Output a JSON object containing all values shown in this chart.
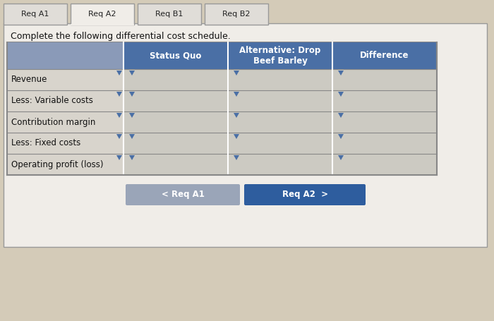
{
  "tabs": [
    "Req A1",
    "Req A2",
    "Req B1",
    "Req B2"
  ],
  "instruction": "Complete the following differential cost schedule.",
  "col_headers": [
    "",
    "Status Quo",
    "Alternative: Drop\nBeef Barley",
    "Difference"
  ],
  "row_labels": [
    "Revenue",
    "Less: Variable costs",
    "Contribution margin",
    "Less: Fixed costs",
    "Operating profit (loss)"
  ],
  "header_bg": "#4A6FA5",
  "header_text": "#FFFFFF",
  "page_bg": "#D4CBB8",
  "content_bg": "#F0EDE8",
  "tab_active_bg": "#F0EDE8",
  "tab_inactive_bg": "#E0DDD8",
  "tab_border": "#999999",
  "label_cell_bg": "#C8C4B8",
  "data_cell_bg": "#D0CCC0",
  "row_label_bg": "#E8E5E0",
  "row_data_bg": "#D4D0C8",
  "separator_color": "#FFFFFF",
  "outer_border": "#888888",
  "nav_left_bg": "#9AA5B8",
  "nav_right_bg": "#2E5D9E",
  "nav_text": "#FFFFFF",
  "nav_left_label": "< Req A1",
  "nav_right_label": "Req A2  >",
  "figsize": [
    7.0,
    4.55
  ],
  "dpi": 100
}
